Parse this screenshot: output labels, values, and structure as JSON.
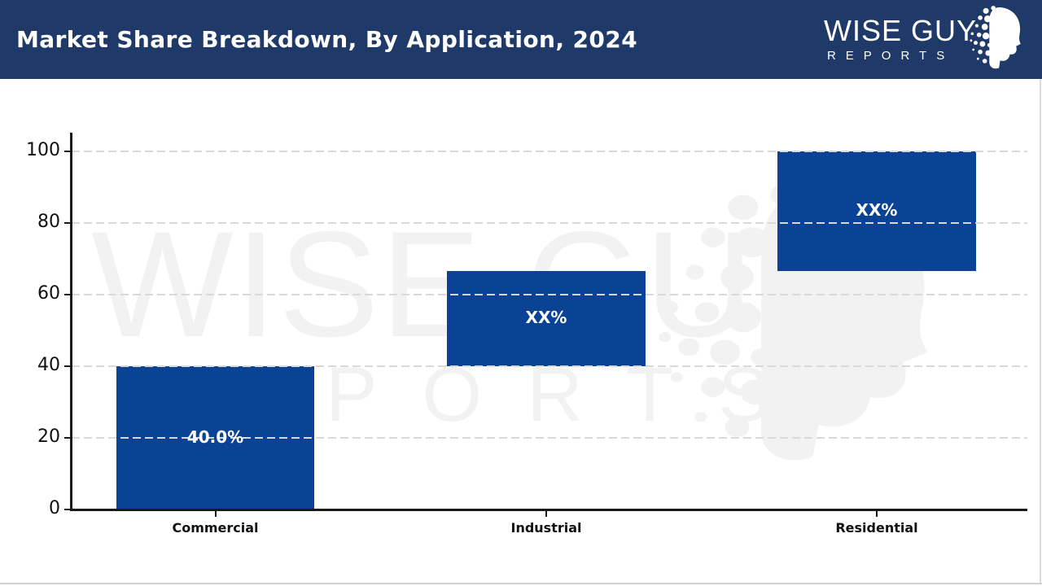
{
  "header": {
    "title": "Market Share Breakdown, By Application, 2024",
    "logo": {
      "wordmark": "WISE GUY",
      "subtext": "REPORTS"
    }
  },
  "watermark": {
    "line1": "WISE GUY",
    "line2": "REPORTS"
  },
  "chart_data": {
    "type": "bar",
    "variant": "waterfall",
    "title": "Market Share Breakdown, By Application, 2024",
    "categories": [
      "Commercial",
      "Industrial",
      "Residential"
    ],
    "bars": [
      {
        "category": "Commercial",
        "start": 0,
        "end": 40,
        "label": "40.0%"
      },
      {
        "category": "Industrial",
        "start": 40,
        "end": 66.7,
        "label": "XX%"
      },
      {
        "category": "Residential",
        "start": 66.7,
        "end": 100,
        "label": "XX%"
      }
    ],
    "yticks": [
      0,
      20,
      40,
      60,
      80,
      100
    ],
    "ylim": [
      0,
      105
    ],
    "xlabel": "",
    "ylabel": "",
    "grid": "horizontal-dashed",
    "legend": "none",
    "bar_color": "#0a4296",
    "value_label_color": "#ffffff"
  },
  "colors": {
    "header_bg": "#1f3a68",
    "bar": "#0a4296",
    "grid": "#d9d9d9",
    "axis": "#1a1a1a",
    "watermark": "#f2f2f2"
  }
}
